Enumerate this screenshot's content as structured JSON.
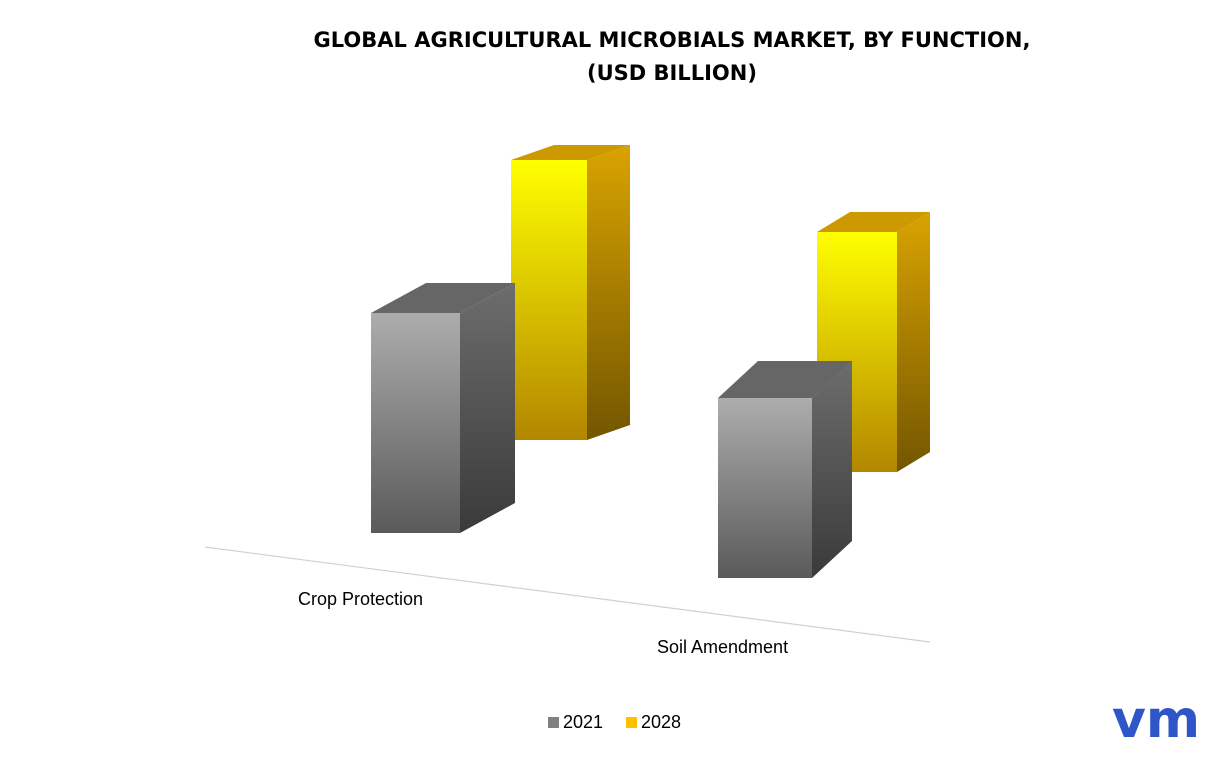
{
  "chart_data": {
    "type": "bar3d",
    "title": "GLOBAL AGRICULTURAL MICROBIALS MARKET, BY FUNCTION,",
    "subtitle": "(USD BILLION)",
    "categories": [
      "Crop Protection",
      "Soil Amendment"
    ],
    "series": [
      {
        "name": "2021",
        "color": "#808080",
        "values": [
          2.2,
          1.8
        ]
      },
      {
        "name": "2028",
        "color": "#ffc000",
        "values": [
          2.8,
          2.4
        ]
      }
    ],
    "legend": "bottom",
    "logo": "vm"
  }
}
